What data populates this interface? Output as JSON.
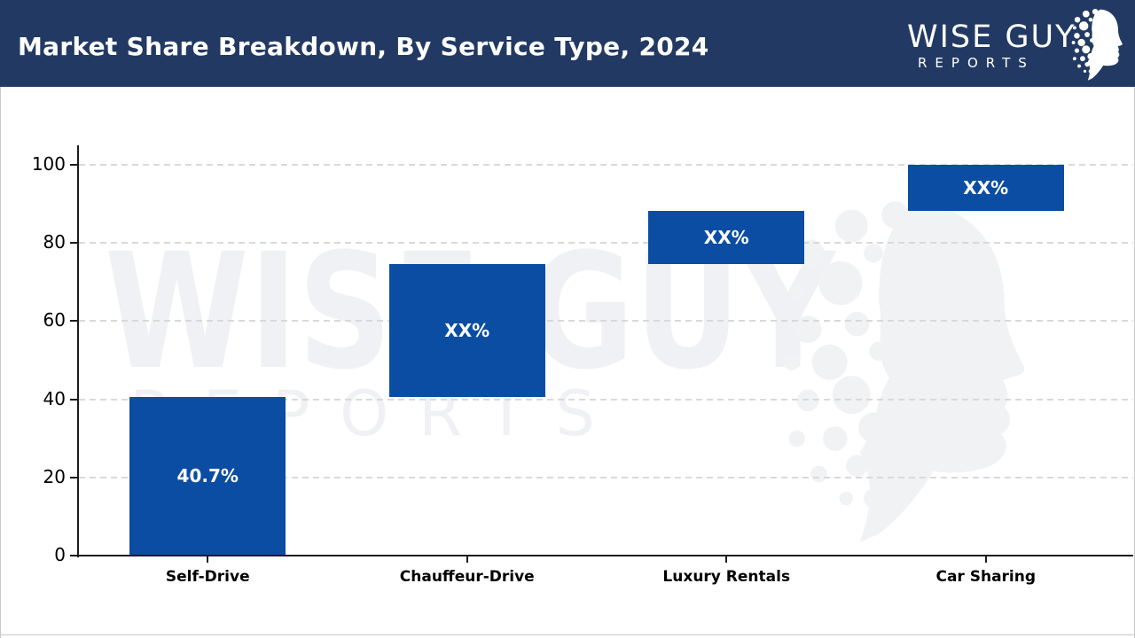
{
  "header": {
    "title": "Market Share Breakdown, By Service Type, 2024",
    "bg_color": "#223a63"
  },
  "logo": {
    "line1": "WISE GUY",
    "line2": "REPORTS",
    "head_icon": "dotted-head-profile"
  },
  "watermark": {
    "line1": "WISE GUY",
    "line2": "REPORTS",
    "head_icon": "dotted-head-profile"
  },
  "chart_data": {
    "type": "bar",
    "subtype": "floating-waterfall",
    "title": "Market Share Breakdown, By Service Type, 2024",
    "categories": [
      "Self-Drive",
      "Chauffeur-Drive",
      "Luxury Rentals",
      "Car Sharing"
    ],
    "values": [
      40.7,
      34.0,
      13.6,
      11.7
    ],
    "segments": [
      {
        "category": "Self-Drive",
        "start": 0,
        "end": 40.7,
        "label": "40.7%"
      },
      {
        "category": "Chauffeur-Drive",
        "start": 40.7,
        "end": 74.7,
        "label": "XX%"
      },
      {
        "category": "Luxury Rentals",
        "start": 74.7,
        "end": 88.3,
        "label": "XX%"
      },
      {
        "category": "Car Sharing",
        "start": 88.3,
        "end": 100,
        "label": "XX%"
      }
    ],
    "xlabel": "",
    "ylabel": "",
    "ylim": [
      0,
      100
    ],
    "yticks": [
      0,
      20,
      40,
      60,
      80,
      100
    ],
    "grid": "horizontal-dashed",
    "legend": "none",
    "bar_color": "#0b4da2",
    "bar_label_color": "#ffffff",
    "axis_color": "#1c1c1c",
    "gridline_color": "#d9d9d9"
  }
}
